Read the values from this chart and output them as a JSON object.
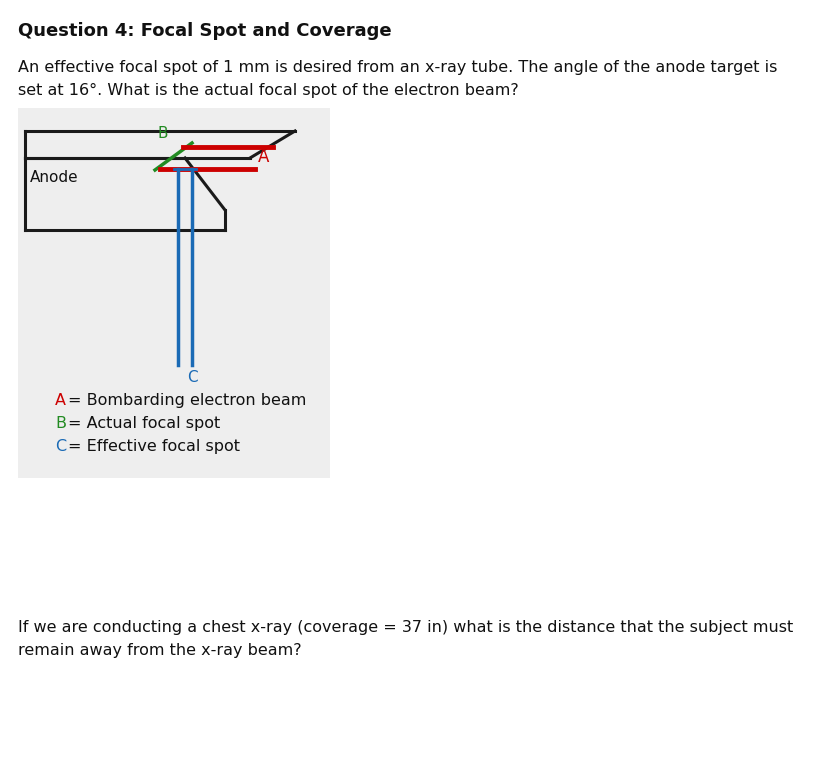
{
  "title": "Question 4: Focal Spot and Coverage",
  "para1_line1": "An effective focal spot of 1 mm is desired from an x-ray tube. The angle of the anode target is",
  "para1_line2": "set at 16°. What is the actual focal spot of the electron beam?",
  "para2_line1": "If we are conducting a chest x-ray (coverage = 37 in) what is the distance that the subject must",
  "para2_line2": "remain away from the x-ray beam?",
  "anode_label": "Anode",
  "color_A": "#cc0000",
  "color_B": "#228B22",
  "color_C": "#1a6ab5",
  "bg_color": "#eeeeee",
  "page_bg": "#ffffff",
  "fig_w": 8.29,
  "fig_h": 7.76,
  "dpi": 100
}
